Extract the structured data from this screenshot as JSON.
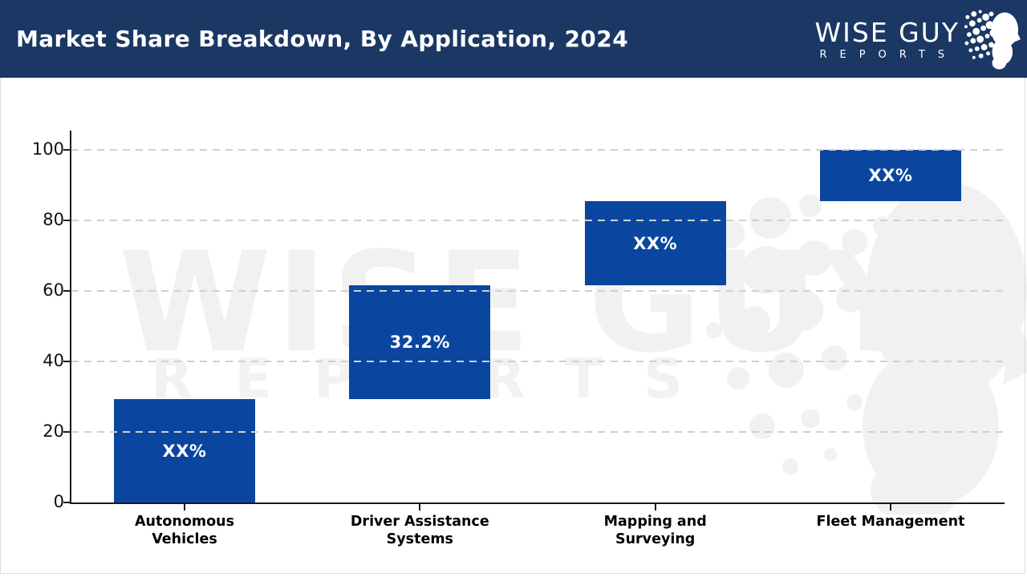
{
  "header": {
    "title": "Market Share Breakdown, By Application, 2024",
    "logo_line1": "WISE GUY",
    "logo_line2": "REPORTS"
  },
  "watermark": {
    "line1": "WISE GUY",
    "line2": "REPORTS"
  },
  "chart_data": {
    "type": "bar",
    "subtype": "floating-waterfall",
    "title": "Market Share Breakdown, By Application, 2024",
    "categories": [
      "Autonomous Vehicles",
      "Driver Assistance Systems",
      "Mapping and Surveying",
      "Fleet Management"
    ],
    "category_lines": [
      [
        "Autonomous",
        "Vehicles"
      ],
      [
        "Driver Assistance",
        "Systems"
      ],
      [
        "Mapping and",
        "Surveying"
      ],
      [
        "Fleet Management"
      ]
    ],
    "segments": [
      {
        "category": "Autonomous Vehicles",
        "start": 0,
        "end": 29.3,
        "value": 29.3,
        "label": "XX%"
      },
      {
        "category": "Driver Assistance Systems",
        "start": 29.3,
        "end": 61.5,
        "value": 32.2,
        "label": "32.2%"
      },
      {
        "category": "Mapping and Surveying",
        "start": 61.5,
        "end": 85.5,
        "value": 24.0,
        "label": "XX%"
      },
      {
        "category": "Fleet Management",
        "start": 85.5,
        "end": 100.0,
        "value": 14.5,
        "label": "XX%"
      }
    ],
    "yticks": [
      0,
      20,
      40,
      60,
      80,
      100
    ],
    "ylim": [
      0,
      105
    ],
    "xlabel": "",
    "ylabel": "",
    "grid": "horizontal-dashed, drawn over bars",
    "legend": "none",
    "bar_color": "#0a46a0",
    "bar_label_color": "#ffffff"
  },
  "colors": {
    "header_bg": "#1b3764",
    "bar": "#0a46a0",
    "grid": "#d0d0d0",
    "axis": "#1a1a1a",
    "watermark": "#f1f1f1",
    "frame_border": "#dcdcdc"
  }
}
